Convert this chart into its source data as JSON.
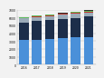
{
  "years": [
    "2016",
    "2017",
    "2018",
    "2019",
    "2020",
    "2021"
  ],
  "segments": {
    "blue": [
      3100,
      3200,
      3280,
      3380,
      3450,
      3550
    ],
    "navy": [
      2300,
      2350,
      2400,
      2450,
      2500,
      2580
    ],
    "gray": [
      480,
      490,
      500,
      510,
      520,
      530
    ],
    "red": [
      100,
      105,
      110,
      110,
      115,
      120
    ],
    "green": [
      80,
      85,
      90,
      95,
      100,
      105
    ],
    "black": [
      25,
      27,
      28,
      30,
      30,
      32
    ]
  },
  "colors": {
    "blue": "#4a90d9",
    "navy": "#1c2e4a",
    "gray": "#9aaab8",
    "red": "#c0392b",
    "green": "#5dba5d",
    "black": "#2c2c2c"
  },
  "ylim": [
    0,
    7000
  ],
  "yticks": [
    0,
    1000,
    2000,
    3000,
    4000,
    5000,
    6000,
    7000
  ],
  "bar_width": 0.75,
  "background_color": "#f2f2f2",
  "plot_bg": "#f2f2f2"
}
